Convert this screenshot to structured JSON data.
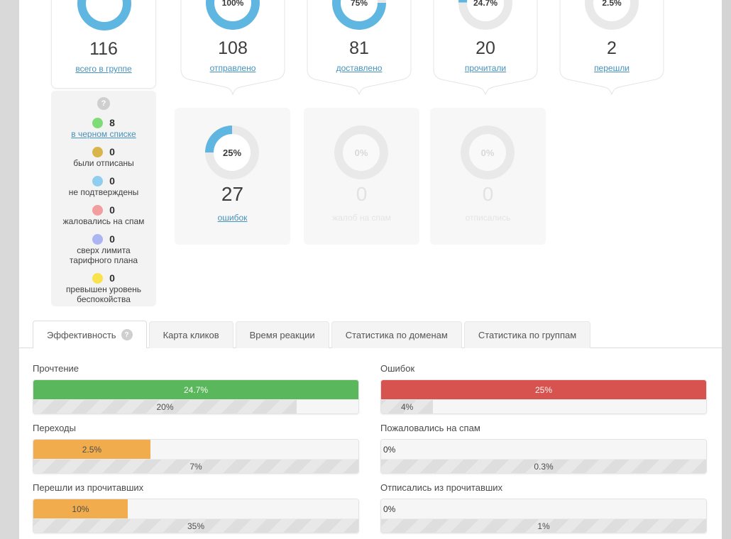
{
  "colors": {
    "ring_blue": "#5fb6e0",
    "ring_gray": "#e9e9e9",
    "green": "#5bb75b",
    "red": "#d6534f",
    "orange": "#f0ac4d",
    "link": "#4692bc"
  },
  "summary_cards": [
    {
      "percent": "",
      "ring": 100,
      "value": "116",
      "label": "всего в группе"
    },
    {
      "percent": "100%",
      "ring": 100,
      "value": "108",
      "label": "отправлено"
    },
    {
      "percent": "75%",
      "ring": 75,
      "value": "81",
      "label": "доставлено"
    },
    {
      "percent": "24.7%",
      "ring": 24.7,
      "value": "20",
      "label": "прочитали"
    },
    {
      "percent": "2.5%",
      "ring": 2.5,
      "value": "2",
      "label": "перешли"
    }
  ],
  "blacklist_panel": {
    "help_icon": "?",
    "items": [
      {
        "count": "8",
        "label": "в черном списке",
        "color": "#7edc76",
        "link": true
      },
      {
        "count": "0",
        "label": "были отписаны",
        "color": "#d9b44a"
      },
      {
        "count": "0",
        "label": "не подтверждены",
        "color": "#90cef0"
      },
      {
        "count": "0",
        "label": "жаловались на спам",
        "color": "#f29e9e"
      },
      {
        "count": "0",
        "label": "сверх лимита тарифного плана",
        "color": "#abb5f2"
      },
      {
        "count": "0",
        "label": "превышен уровень беспокойства",
        "color": "#f8e34d"
      }
    ]
  },
  "negative_cards": [
    {
      "percent": "25%",
      "ring": 25,
      "value": "27",
      "label": "ошибок"
    },
    {
      "percent": "0%",
      "ring": 0,
      "value": "0",
      "label": "жалоб на спам"
    },
    {
      "percent": "0%",
      "ring": 0,
      "value": "0",
      "label": "отписались"
    }
  ],
  "tabs": [
    {
      "label": "Эффективность",
      "help_icon": "?"
    },
    {
      "label": "Карта кликов"
    },
    {
      "label": "Время реакции"
    },
    {
      "label": "Статистика по доменам"
    },
    {
      "label": "Статистика по группам"
    }
  ],
  "efficiency": {
    "left": [
      {
        "label": "Прочтение",
        "value": "24.7%",
        "value_bar": 100,
        "average": "20%",
        "average_bar": 81
      },
      {
        "label": "Переходы",
        "value": "2.5%",
        "value_bar": 36,
        "average": "7%",
        "average_bar": 100
      },
      {
        "label": "Перешли из прочитавших",
        "value": "10%",
        "value_bar": 29,
        "average": "35%",
        "average_bar": 100
      }
    ],
    "right": [
      {
        "label": "Ошибок",
        "value": "25%",
        "value_bar": 100,
        "average": "4%",
        "average_bar": 16
      },
      {
        "label": "Пожаловались на спам",
        "value": "0%",
        "value_bar": 0,
        "average": "0.3%",
        "average_bar": 100
      },
      {
        "label": "Отписались из прочитавших",
        "value": "0%",
        "value_bar": 0,
        "average": "1%",
        "average_bar": 100
      }
    ]
  }
}
